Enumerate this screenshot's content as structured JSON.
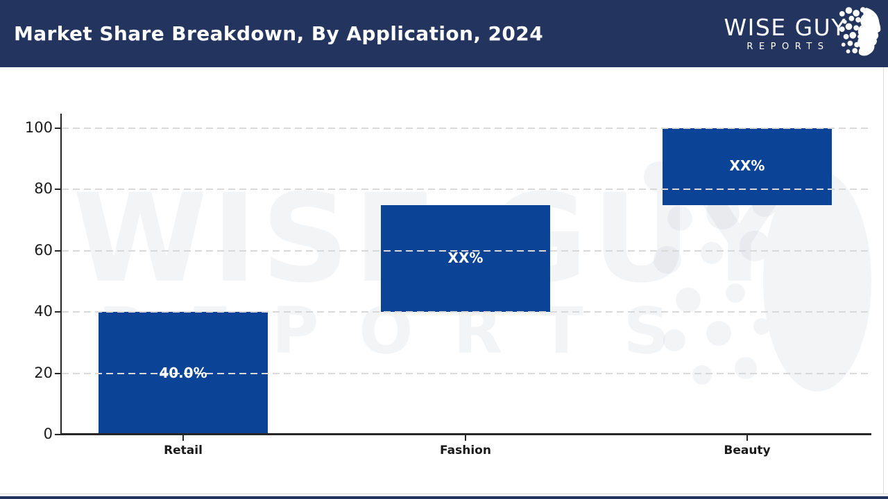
{
  "header": {
    "title": "Market Share Breakdown, By Application, 2024",
    "bg_color": "#23355e",
    "logo": {
      "wordmark": "WISE GUY",
      "subtext": "REPORTS"
    }
  },
  "watermark": {
    "wordmark": "WISE GUY",
    "subtext": "REPORTS"
  },
  "chart_data": {
    "type": "bar",
    "variant": "waterfall",
    "title": "Market Share Breakdown, By Application, 2024",
    "categories": [
      "Retail",
      "Fashion",
      "Beauty"
    ],
    "segments": [
      {
        "category": "Retail",
        "start": 0,
        "end": 40,
        "label": "40.0%"
      },
      {
        "category": "Fashion",
        "start": 40,
        "end": 75,
        "label": "XX%"
      },
      {
        "category": "Beauty",
        "start": 75,
        "end": 100,
        "label": "XX%"
      }
    ],
    "yticks": [
      0,
      20,
      40,
      60,
      80,
      100
    ],
    "ylim": [
      0,
      103
    ],
    "xlabel": "",
    "ylabel": "",
    "grid": true,
    "grid_style": "horizontal-dashed",
    "grid_above_bars": true,
    "legend": false,
    "colors": {
      "bar": "#0b4397",
      "bar_label": "#ffffff",
      "axis": "#262626",
      "grid": "#d9d9d9",
      "tick_label": "#1a1a1a"
    }
  },
  "footer": {
    "bg_color": "#23355e"
  }
}
